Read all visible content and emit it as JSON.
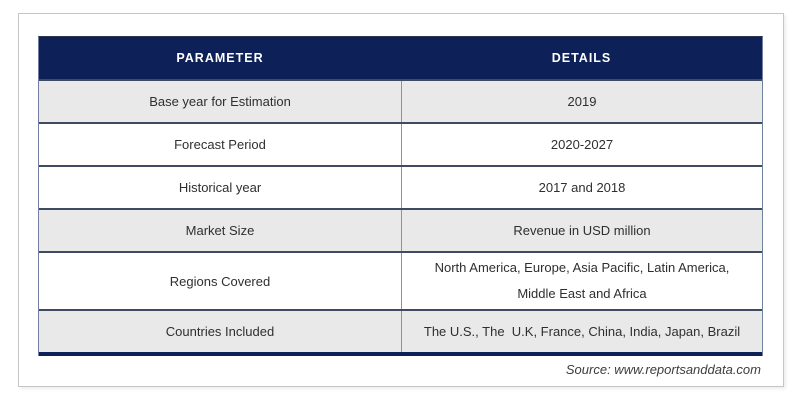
{
  "table": {
    "headers": {
      "parameter": "PARAMETER",
      "details": "DETAILS"
    },
    "rows": [
      {
        "parameter": "Base year for Estimation",
        "details": "2019"
      },
      {
        "parameter": "Forecast Period",
        "details": "2020-2027"
      },
      {
        "parameter": "Historical year",
        "details": "2017 and 2018"
      },
      {
        "parameter": "Market Size",
        "details": "Revenue in USD million"
      },
      {
        "parameter": "Regions Covered",
        "details": "North America, Europe, Asia Pacific, Latin America,\nMiddle East and Africa"
      },
      {
        "parameter": "Countries Included",
        "details": "The U.S., The  U.K, France, China, India, Japan, Brazil"
      }
    ]
  },
  "source": {
    "label": "Source: www.reportsanddata.com"
  },
  "colors": {
    "header_bg": "#0d2057",
    "header_text": "#ffffff",
    "shaded_row_bg": "#e9e9e9",
    "row_border": "#3f4a63",
    "column_divider": "#8592b2",
    "bottom_bar": "#0d2057"
  },
  "chart_data": {
    "type": "table",
    "columns": [
      "PARAMETER",
      "DETAILS"
    ],
    "rows": [
      [
        "Base year for Estimation",
        "2019"
      ],
      [
        "Forecast Period",
        "2020-2027"
      ],
      [
        "Historical year",
        "2017 and 2018"
      ],
      [
        "Market Size",
        "Revenue in USD million"
      ],
      [
        "Regions Covered",
        "North America, Europe, Asia Pacific, Latin America, Middle East and Africa"
      ],
      [
        "Countries Included",
        "The U.S., The  U.K, France, China, India, Japan, Brazil"
      ]
    ],
    "legend_position": "none",
    "source": "Source: www.reportsanddata.com"
  }
}
